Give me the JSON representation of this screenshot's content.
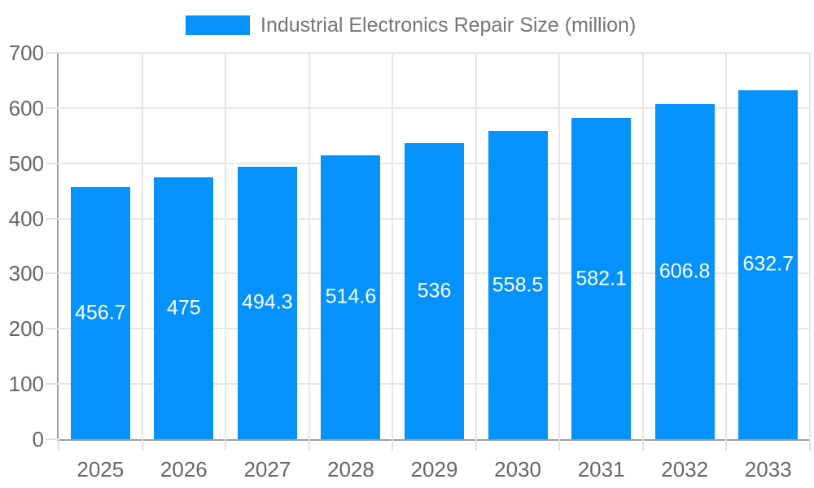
{
  "colors": {
    "accent": "#0692fb",
    "background": "#ffffff",
    "axis_line": "#9e9e9e",
    "grid_line": "#e6e6e6",
    "tick_line": "#e0e0e0",
    "axis_label": "#666666",
    "legend_text": "#757575",
    "data_label": "#ffffff"
  },
  "chart_data": {
    "type": "bar",
    "legend": {
      "position": "top",
      "label": "Industrial Electronics Repair Size (million)"
    },
    "categories": [
      "2025",
      "2026",
      "2027",
      "2028",
      "2029",
      "2030",
      "2031",
      "2032",
      "2033"
    ],
    "values": [
      456.7,
      475,
      494.3,
      514.6,
      536,
      558.5,
      582.1,
      606.8,
      632.7
    ],
    "ylim": [
      0,
      700
    ],
    "yticks": [
      0,
      100,
      200,
      300,
      400,
      500,
      600,
      700
    ],
    "grid": {
      "horizontal": true,
      "vertical": true
    },
    "data_labels": "inside-center"
  }
}
